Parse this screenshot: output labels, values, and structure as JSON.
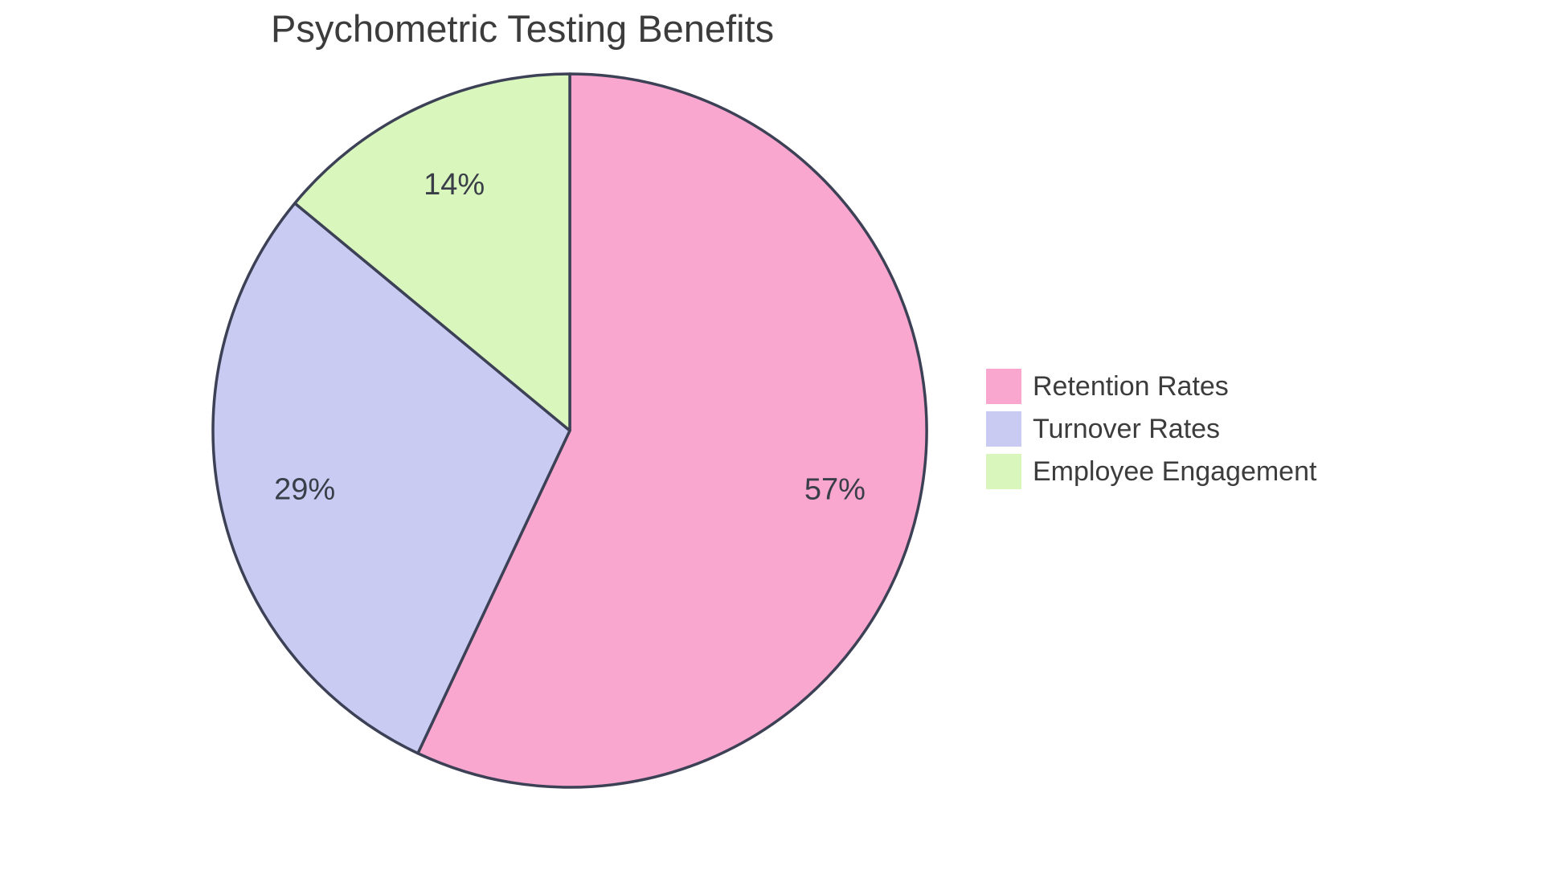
{
  "page": {
    "background_color": "#ffffff"
  },
  "chart_data": {
    "type": "pie",
    "title": "Psychometric Testing Benefits",
    "labels": [
      "Retention Rates",
      "Turnover Rates",
      "Employee Engagement"
    ],
    "values": [
      57,
      29,
      14
    ],
    "percent_labels": [
      "57%",
      "29%",
      "14%"
    ],
    "colors": [
      "#FAA7D0",
      "#C9CBF3",
      "#D9F6BD"
    ],
    "slice_border_color": "#3D4156",
    "percent_label_color": "#3A3E48",
    "title_color": "#3C3C3C",
    "legend_text_color": "#3C3C3C",
    "legend_position": "right",
    "start_angle_deg": 0,
    "direction": "clockwise"
  }
}
